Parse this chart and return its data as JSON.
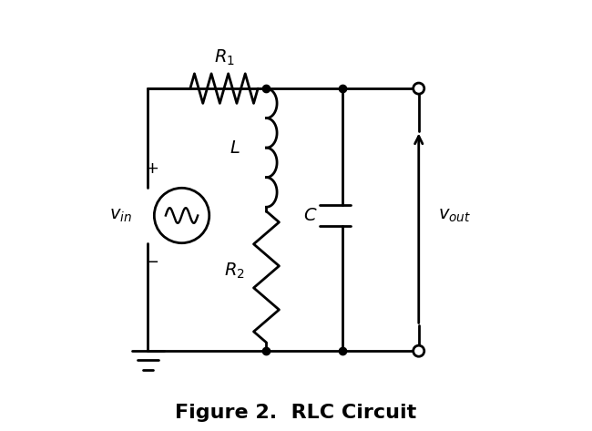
{
  "title": "Figure 2.  RLC Circuit",
  "title_fontsize": 16,
  "title_fontweight": "bold",
  "background_color": "#ffffff",
  "line_color": "#000000",
  "line_width": 2.0,
  "figsize": [
    6.5,
    4.73
  ],
  "dpi": 100
}
